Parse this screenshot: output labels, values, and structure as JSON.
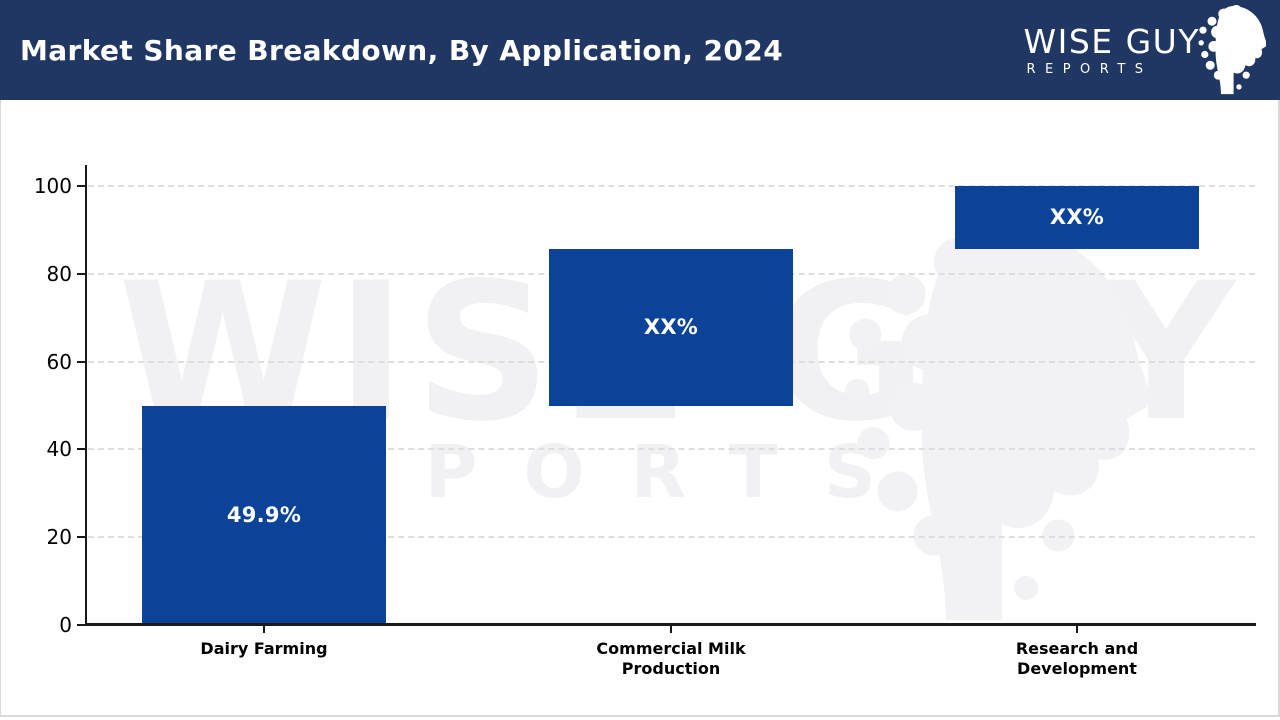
{
  "header": {
    "title": "Market Share Breakdown, By Application, 2024",
    "logo": {
      "name": "Wise Guy Reports",
      "line1": "WISE GUY",
      "line2": "REPORTS"
    }
  },
  "watermark": {
    "line1": "WISE GUY",
    "line2": "REPORTS"
  },
  "chart_data": {
    "type": "bar",
    "subtype": "floating-segment-waterfall",
    "title": "Market Share Breakdown, By Application, 2024",
    "categories": [
      {
        "label": "Dairy Farming",
        "lines": [
          "Dairy Farming"
        ]
      },
      {
        "label": "Commercial Milk Production",
        "lines": [
          "Commercial Milk",
          "Production"
        ]
      },
      {
        "label": "Research and Development",
        "lines": [
          "Research and",
          "Development"
        ]
      }
    ],
    "segments": [
      {
        "category": "Dairy Farming",
        "start": 0,
        "end": 49.9,
        "label": "49.9%"
      },
      {
        "category": "Commercial Milk Production",
        "start": 49.9,
        "end": 85.7,
        "label": "XX%"
      },
      {
        "category": "Research and Development",
        "start": 85.7,
        "end": 100,
        "label": "XX%"
      }
    ],
    "yticks": [
      0,
      20,
      40,
      60,
      80,
      100
    ],
    "ylim": [
      0,
      100
    ],
    "xlabel": "",
    "ylabel": "",
    "grid": {
      "axis": "y",
      "style": "dashed",
      "color": "#dedede"
    },
    "legend": "none",
    "bar_color": "#0b4399",
    "bar_label_color": "#ffffff",
    "axis_color": "#1a1a1a",
    "header_bg": "#213763"
  }
}
